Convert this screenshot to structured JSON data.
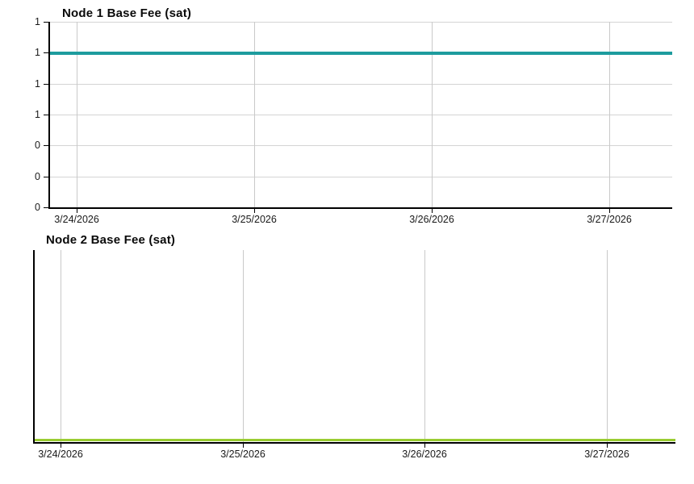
{
  "page": {
    "background": "#ffffff"
  },
  "chart_data": [
    {
      "type": "line",
      "title": "Node 1 Base Fee (sat)",
      "x_tick_labels": [
        "3/24/2026",
        "3/25/2026",
        "3/26/2026",
        "3/27/2026"
      ],
      "y_tick_labels": [
        "1",
        "1",
        "1",
        "1",
        "0",
        "0",
        "0"
      ],
      "x": [
        "3/24/2026",
        "3/25/2026",
        "3/26/2026",
        "3/27/2026"
      ],
      "series": [
        {
          "name": "Node 1 Base Fee",
          "values": [
            1,
            1,
            1,
            1
          ],
          "color": "#1d9c9e"
        }
      ],
      "xlabel": "",
      "ylabel": "",
      "ylim": [
        0,
        1.2
      ],
      "grid": "both",
      "legend": "none",
      "annotation": "flat line at constant value 1 sat across the full date range"
    },
    {
      "type": "line",
      "title": "Node 2 Base Fee (sat)",
      "x_tick_labels": [
        "3/24/2026",
        "3/25/2026",
        "3/26/2026",
        "3/27/2026"
      ],
      "y_tick_labels": [],
      "x": [
        "3/24/2026",
        "3/25/2026",
        "3/26/2026",
        "3/27/2026"
      ],
      "series": [
        {
          "name": "Node 2 Base Fee",
          "values": [
            0,
            0,
            0,
            0
          ],
          "color": "#9acd32"
        }
      ],
      "xlabel": "",
      "ylabel": "",
      "ylim": [
        0,
        1
      ],
      "grid": "x",
      "legend": "none",
      "annotation": "flat line at constant value 0 sat lying on the x-axis"
    }
  ]
}
